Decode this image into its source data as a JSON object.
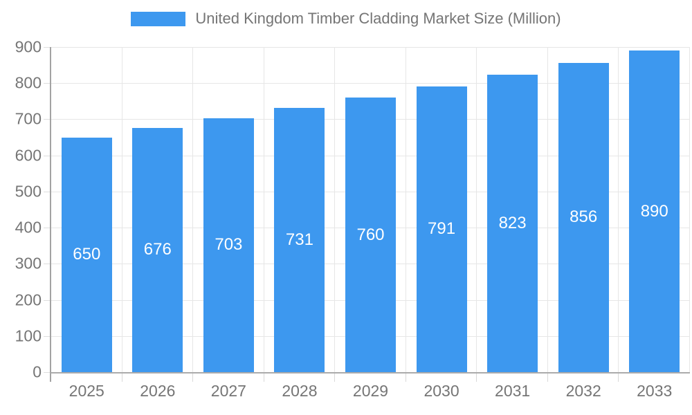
{
  "legend": {
    "label": "United Kingdom Timber Cladding Market Size (Million)",
    "swatch_color": "#3D98EF"
  },
  "chart_data": {
    "type": "bar",
    "title": "United Kingdom Timber Cladding Market Size (Million)",
    "series_name": "United Kingdom Timber Cladding Market Size (Million)",
    "categories": [
      "2025",
      "2026",
      "2027",
      "2028",
      "2029",
      "2030",
      "2031",
      "2032",
      "2033"
    ],
    "values": [
      650,
      676,
      703,
      731,
      760,
      791,
      823,
      856,
      890
    ],
    "xlabel": "",
    "ylabel": "",
    "ylim": [
      0,
      900
    ],
    "ytick_step": 100,
    "ytick_labels": [
      "0",
      "100",
      "200",
      "300",
      "400",
      "500",
      "600",
      "700",
      "800",
      "900"
    ],
    "grid": true,
    "legend_position": "top",
    "bar_color": "#3D98EF",
    "value_label_color": "#ffffff",
    "value_label_position": "center"
  },
  "colors": {
    "bar": "#3D98EF",
    "axis_text": "#757575",
    "gridline": "#e6e6e6",
    "y_axis_line": "#a3a3a3",
    "x_axis_line": "#ababab",
    "background": "#ffffff"
  }
}
